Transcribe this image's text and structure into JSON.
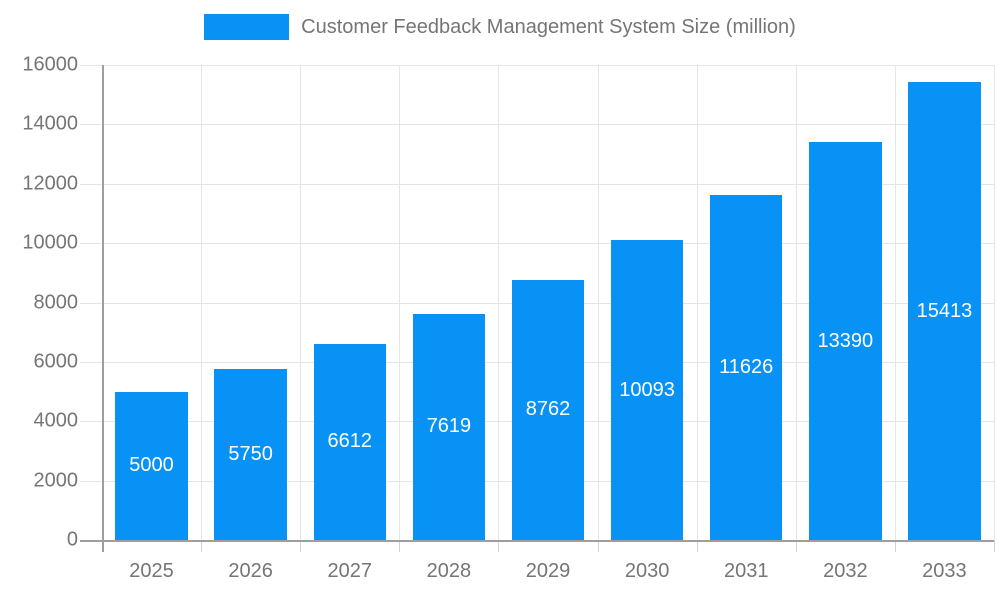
{
  "chart_data": {
    "type": "bar",
    "title": "Customer Feedback Management System Size (million)",
    "categories": [
      "2025",
      "2026",
      "2027",
      "2028",
      "2029",
      "2030",
      "2031",
      "2032",
      "2033"
    ],
    "values": [
      5000,
      5750,
      6612,
      7619,
      8762,
      10093,
      11626,
      13390,
      15413
    ],
    "xlabel": "",
    "ylabel": "",
    "ylim": [
      0,
      16000
    ],
    "ytick_step": 2000,
    "ytick_labels": [
      "0",
      "2000",
      "4000",
      "6000",
      "8000",
      "10000",
      "12000",
      "14000",
      "16000"
    ],
    "grid": true,
    "legend_position": "top-center",
    "legend": [
      {
        "label": "Customer Feedback Management System Size (million)",
        "color": "#0992f5"
      }
    ],
    "value_labels": "inside-center-white"
  },
  "colors": {
    "bar": "#0992f5",
    "grid": "#e5e5e5",
    "tick": "#d2d2d2",
    "axis": "#9e9e9e",
    "text": "#757575",
    "value_label": "#ffffff",
    "background": "#ffffff"
  }
}
